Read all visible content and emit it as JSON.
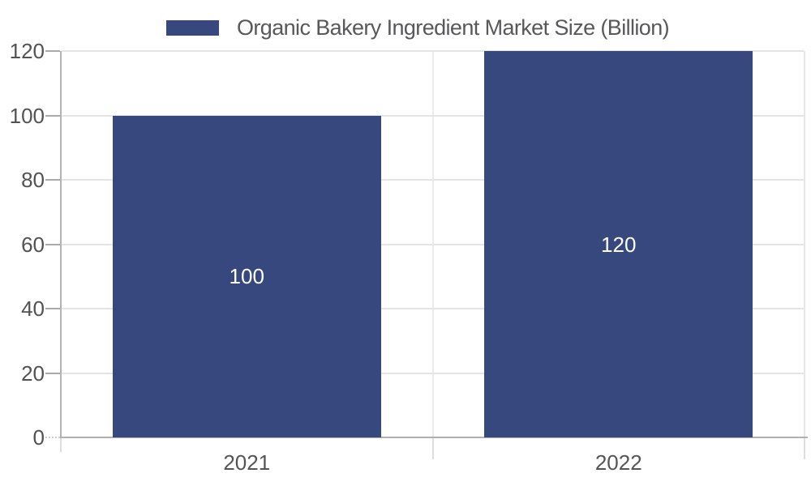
{
  "legend": {
    "label": "Organic Bakery Ingredient Market Size (Billion)"
  },
  "chart_data": {
    "type": "bar",
    "title": "Organic Bakery Ingredient Market Size (Billion)",
    "categories": [
      "2021",
      "2022"
    ],
    "values": [
      100,
      120
    ],
    "data_labels": [
      "100",
      "120"
    ],
    "ylim": [
      0,
      120
    ],
    "yticks": [
      0,
      20,
      40,
      60,
      80,
      100,
      120
    ],
    "xlabel": "",
    "ylabel": "",
    "grid": true,
    "legend_position": "top-center",
    "data_label_position": "inside-center",
    "colors": {
      "bar": "#36487E",
      "axis": "#B0B0B0",
      "gridline": "#E4E4E4",
      "tick_label": "#525252",
      "legend_text": "#58585A",
      "bar_label_text": "#FFFFFF",
      "background": "#FFFFFF"
    }
  }
}
